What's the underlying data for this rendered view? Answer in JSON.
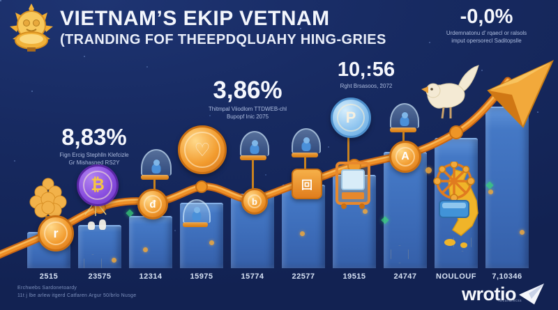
{
  "header": {
    "title": "VIETNAM’S EKIP VETNAM",
    "subtitle": "(TRANDING FOF THEEPDQLUAHY HING-GRIES"
  },
  "stats": {
    "left": {
      "value": "8,83%",
      "line1": "Fign Ercig Stephlln Klefcizle",
      "line2": "Gr Mishasned RS2Y"
    },
    "mid": {
      "value": "3,86%",
      "line1": "Thitmpal Viiodlom TTDWEB-chl",
      "line2": "Bupopf Inic 2075"
    },
    "time": {
      "value": "10,:56",
      "line1": "Rght Brsasoos, 2072"
    },
    "topRight": {
      "value": "-0,0%",
      "line1": "Urdemnatonu d' rqaecl or ralsols",
      "line2": "imput opersorecl Saditopslle"
    }
  },
  "chart_data": {
    "type": "bar",
    "title": "VIETNAM’S EKIP VETNAM (TRANDING FOF THEEPDQLUAHY HING-GRIES",
    "categories": [
      "2515",
      "23575",
      "12314",
      "15975",
      "15774",
      "22577",
      "19515",
      "24747",
      "NOULOUF",
      "7,10346"
    ],
    "values": [
      50,
      60,
      73,
      92,
      105,
      118,
      132,
      165,
      185,
      230
    ],
    "value_unit": "estimated bar height in px (no y-axis shown)",
    "xlabel": "",
    "ylabel": "",
    "grid": false,
    "legend": false,
    "annotations": [
      "8,83%",
      "3,86%",
      "10,:56",
      "-0,0%"
    ],
    "bar_color": "#4478c5",
    "background_color": "#16285e",
    "accent_color": "#e8832a"
  },
  "icons": {
    "coin1_glyph": "r",
    "btc_glyph": "₿",
    "coin3_glyph": "đ",
    "big_coin_glyph": "♡",
    "coin5_glyph": "b",
    "lantern_glyph": "回",
    "p_coin_glyph": "P",
    "coin8_glyph": "A"
  },
  "footer": {
    "line1": "Erchwebs Sardonetoardy",
    "line2": "11t j lbe arlew itgerd Catfaren Argur 50/brlo Nusge",
    "logo": "wrotio",
    "logo_tagline": "Nicanarecss"
  }
}
